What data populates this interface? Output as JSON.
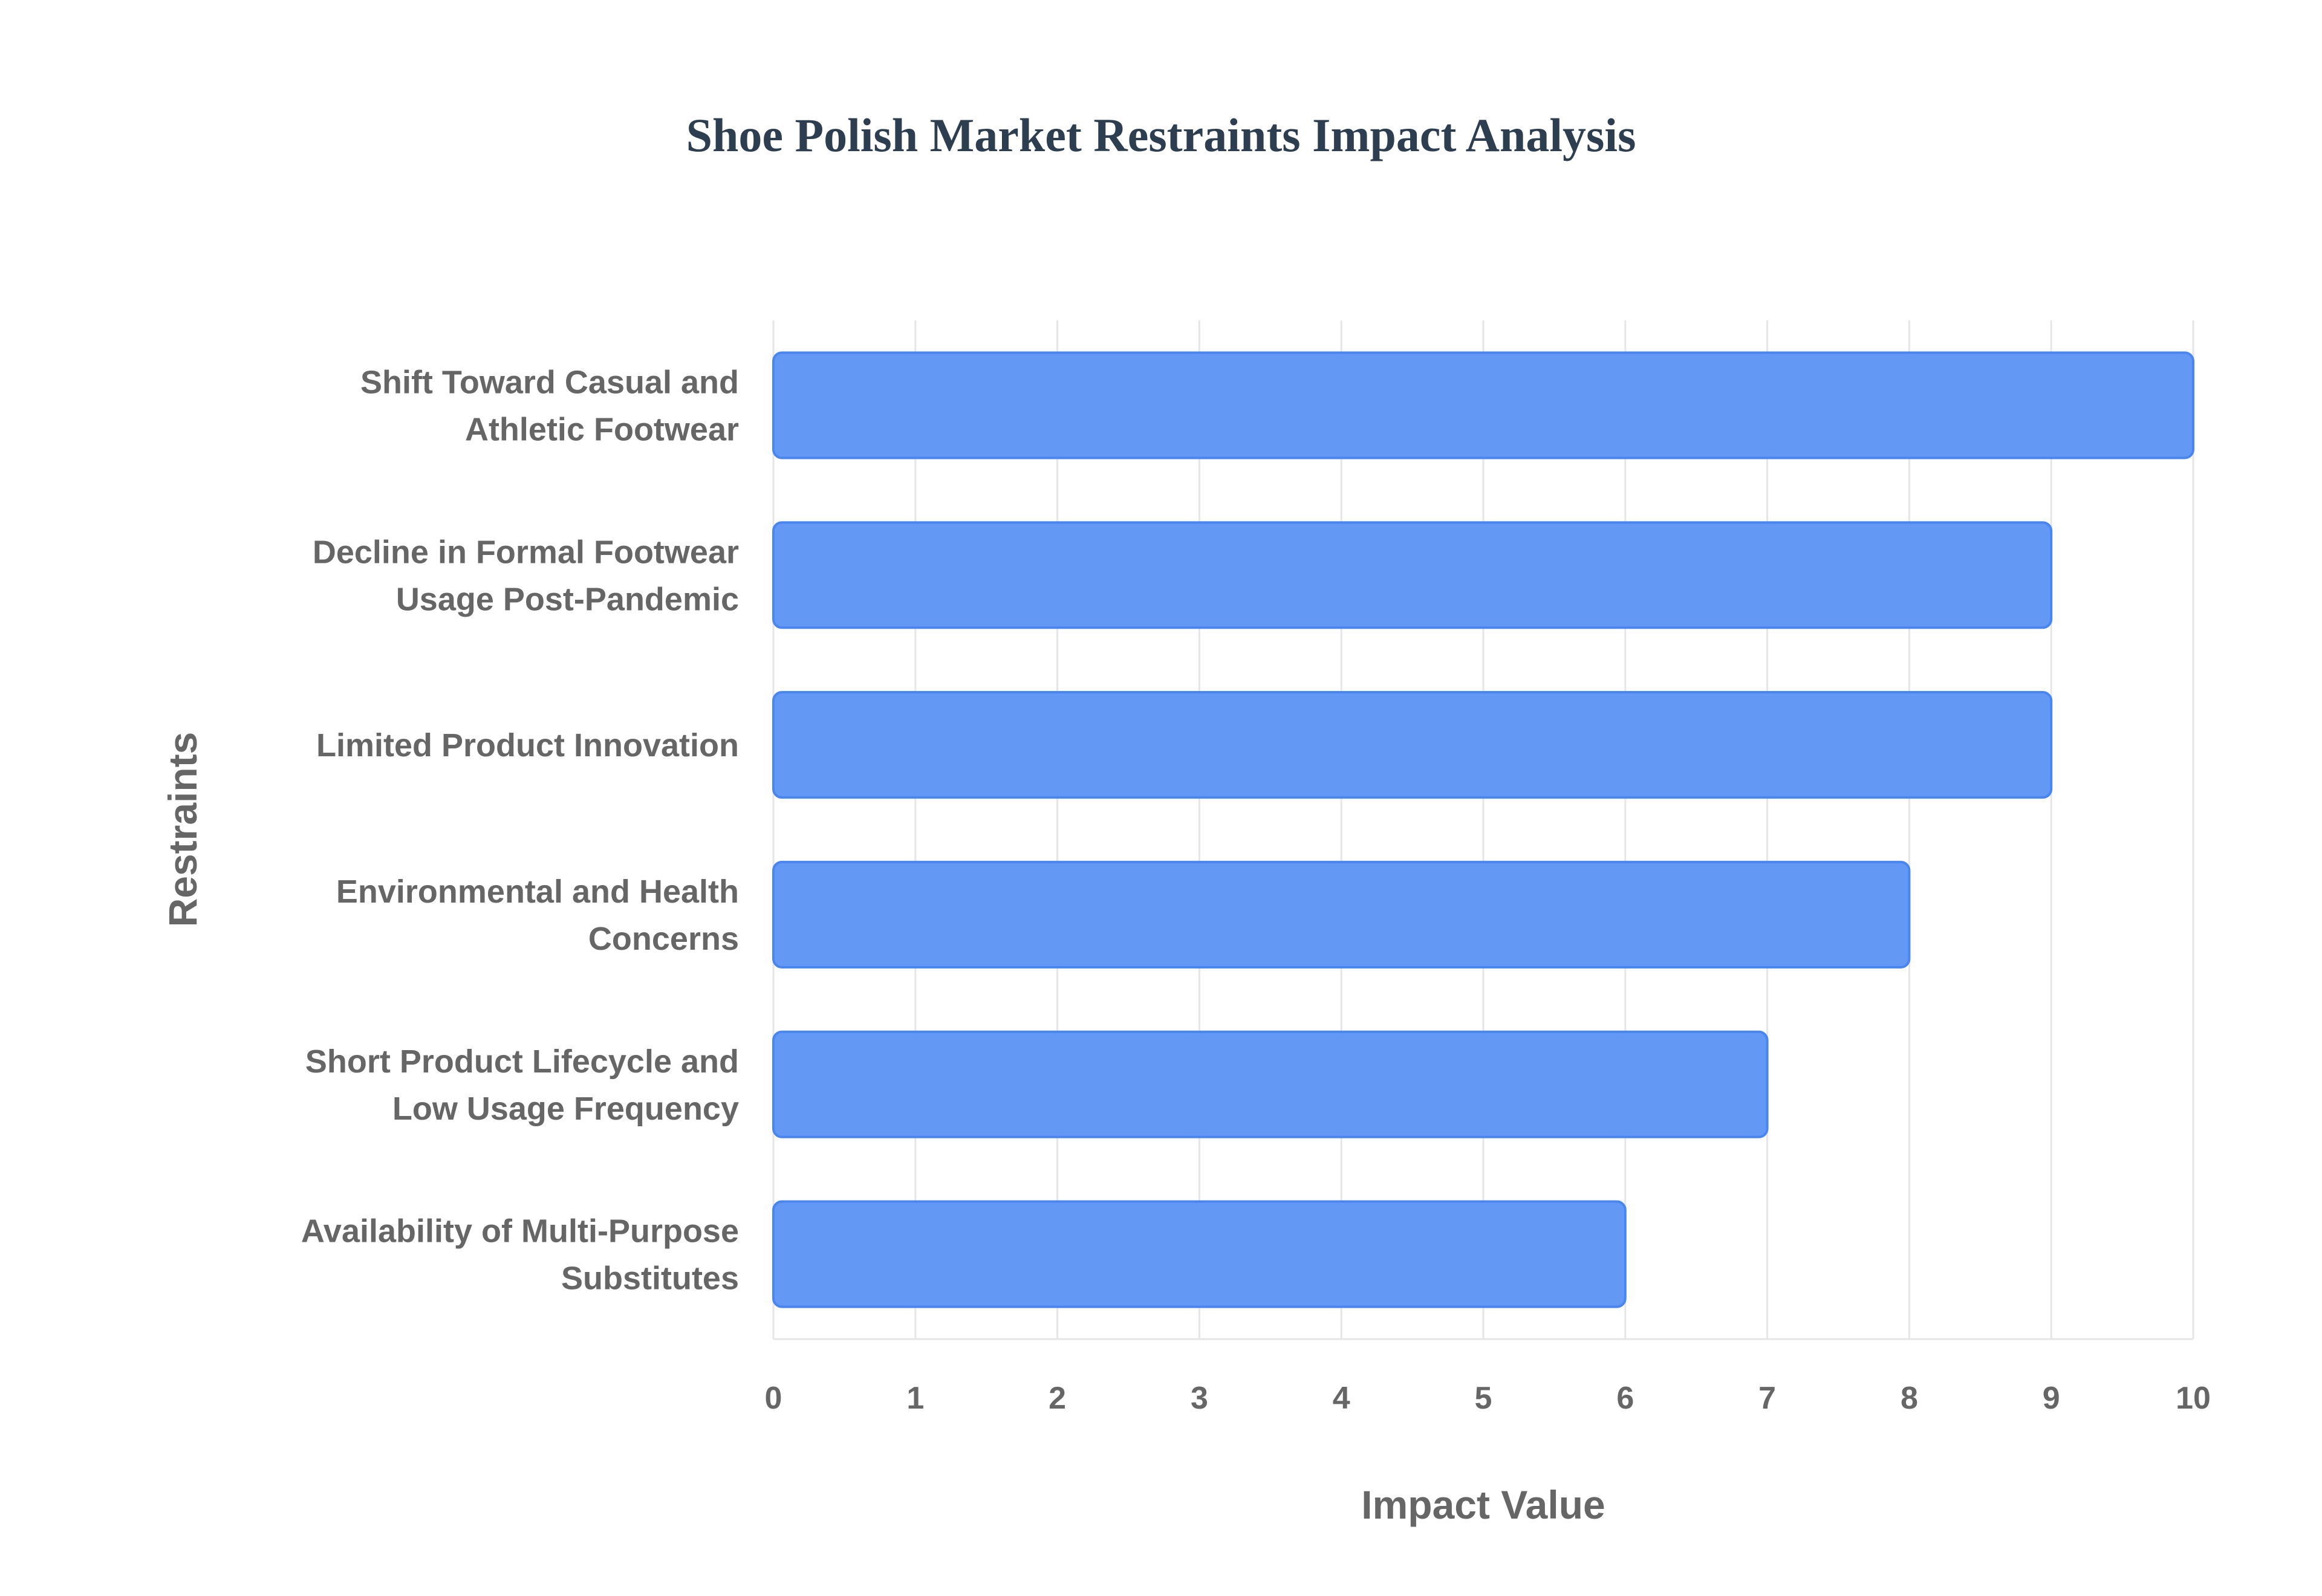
{
  "chart_data": {
    "type": "bar",
    "orientation": "horizontal",
    "title": "Shoe Polish Market Restraints Impact Analysis",
    "xlabel": "Impact Value",
    "ylabel": "Restraints",
    "xlim": [
      0,
      10
    ],
    "x_ticks": [
      0,
      1,
      2,
      3,
      4,
      5,
      6,
      7,
      8,
      9,
      10
    ],
    "grid": true,
    "categories": [
      [
        "Shift Toward Casual and",
        "Athletic Footwear"
      ],
      [
        "Decline in Formal Footwear",
        "Usage Post-Pandemic"
      ],
      [
        "Limited Product Innovation"
      ],
      [
        "Environmental and Health",
        "Concerns"
      ],
      [
        "Short Product Lifecycle and",
        "Low Usage Frequency"
      ],
      [
        "Availability of Multi-Purpose",
        "Substitutes"
      ]
    ],
    "values": [
      10,
      9,
      9,
      8,
      7,
      6
    ],
    "colors": {
      "bar_fill": "#6398f5",
      "bar_stroke": "#4a86f0"
    }
  }
}
